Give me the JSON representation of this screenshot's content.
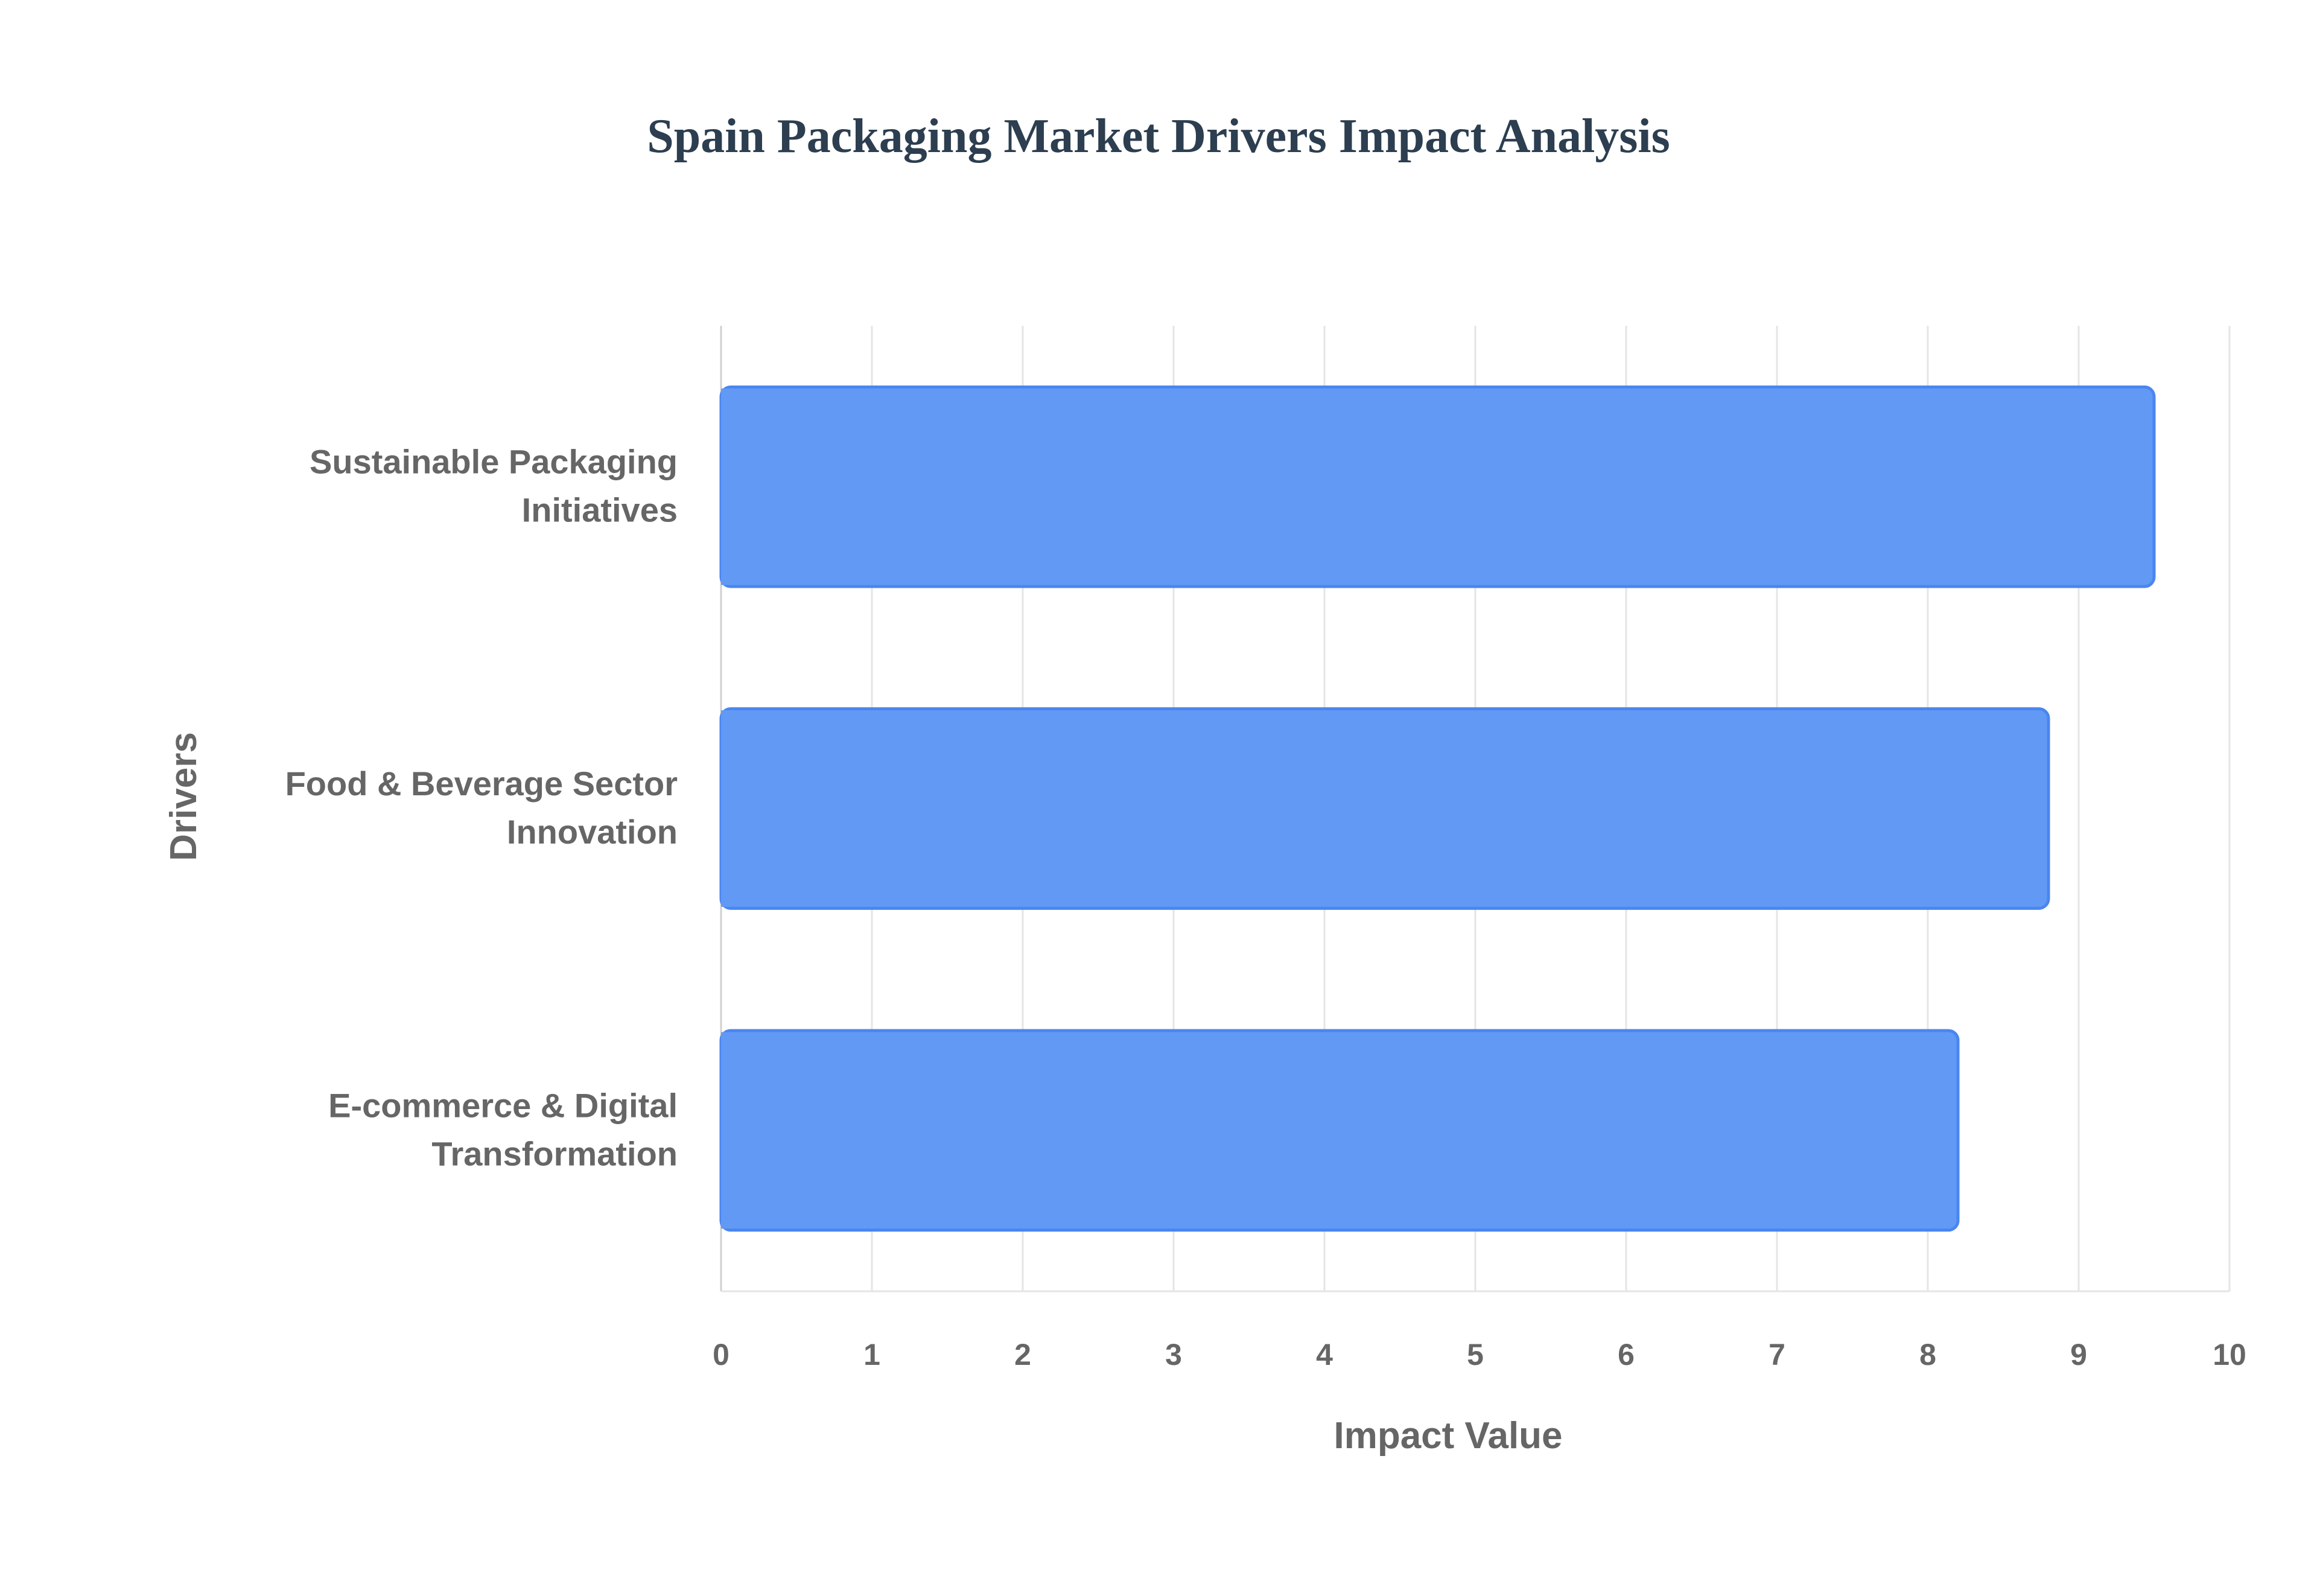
{
  "chart_data": {
    "type": "bar",
    "orientation": "horizontal",
    "title": "Spain Packaging Market Drivers Impact Analysis",
    "xlabel": "Impact Value",
    "ylabel": "Drivers",
    "categories": [
      [
        "Sustainable Packaging",
        "Initiatives"
      ],
      [
        "Food & Beverage Sector",
        "Innovation"
      ],
      [
        "E-commerce & Digital",
        "Transformation"
      ]
    ],
    "values": [
      9.5,
      8.8,
      8.2
    ],
    "xlim": [
      0,
      10
    ],
    "xticks": [
      "0",
      "1",
      "2",
      "3",
      "4",
      "5",
      "6",
      "7",
      "8",
      "9",
      "10"
    ],
    "grid": true,
    "legend": "none",
    "colors": {
      "bar_fill": "#6199f5",
      "bar_stroke": "#4a86ef",
      "title": "#2c3e50",
      "label": "#666666",
      "grid": "#e5e5e5"
    }
  }
}
